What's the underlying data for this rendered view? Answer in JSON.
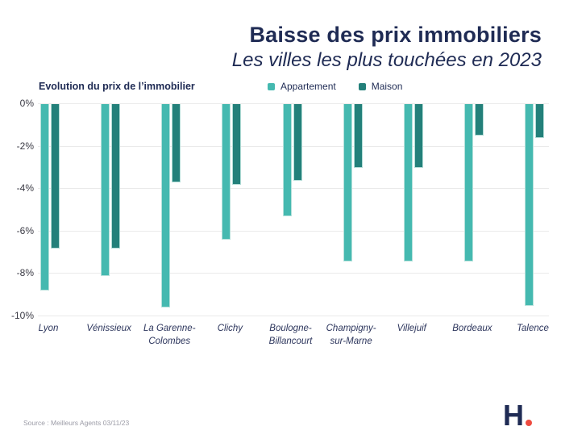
{
  "header": {
    "title": "Baisse des prix immobiliers",
    "subtitle": "Les villes les plus touchées en 2023"
  },
  "chart_header": {
    "axis_title": "Evolution du prix de l’immobilier"
  },
  "chart_data": {
    "type": "bar",
    "title": "Baisse des prix immobiliers — Les villes les plus touchées en 2023",
    "axis_title": "Evolution du prix de l’immobilier",
    "categories": [
      "Lyon",
      "Vénissieux",
      "La Garenne-Colombes",
      "Clichy",
      "Boulogne-Billancourt",
      "Champigny-sur-Marne",
      "Villejuif",
      "Bordeaux",
      "Talence"
    ],
    "categories_display": [
      [
        "Lyon"
      ],
      [
        "Vénissieux"
      ],
      [
        "La Garenne-",
        "Colombes"
      ],
      [
        "Clichy"
      ],
      [
        "Boulogne-",
        "Billancourt"
      ],
      [
        "Champigny-",
        "sur-Marne"
      ],
      [
        "Villejuif"
      ],
      [
        "Bordeaux"
      ],
      [
        "Talence"
      ]
    ],
    "series": [
      {
        "name": "Appartement",
        "color": "#45b9b0",
        "values": [
          -8.8,
          -8.1,
          -9.6,
          -6.4,
          -5.3,
          -7.4,
          -7.4,
          -7.4,
          -9.5
        ]
      },
      {
        "name": "Maison",
        "color": "#23807a",
        "values": [
          -6.8,
          -6.8,
          -3.7,
          -3.8,
          -3.6,
          -3.0,
          -3.0,
          -1.5,
          -1.6
        ]
      }
    ],
    "y_ticks": [
      "0%",
      "-2%",
      "-4%",
      "-6%",
      "-8%",
      "-10%"
    ],
    "ylim": [
      -10,
      0
    ],
    "unit": "%",
    "grid": true,
    "legend_position": "top"
  },
  "footer": {
    "source": "Source : Meilleurs Agents 03/11/23",
    "logo": {
      "letter": "H",
      "color": "#1f2b54",
      "dot_color": "#ee4b40"
    }
  }
}
